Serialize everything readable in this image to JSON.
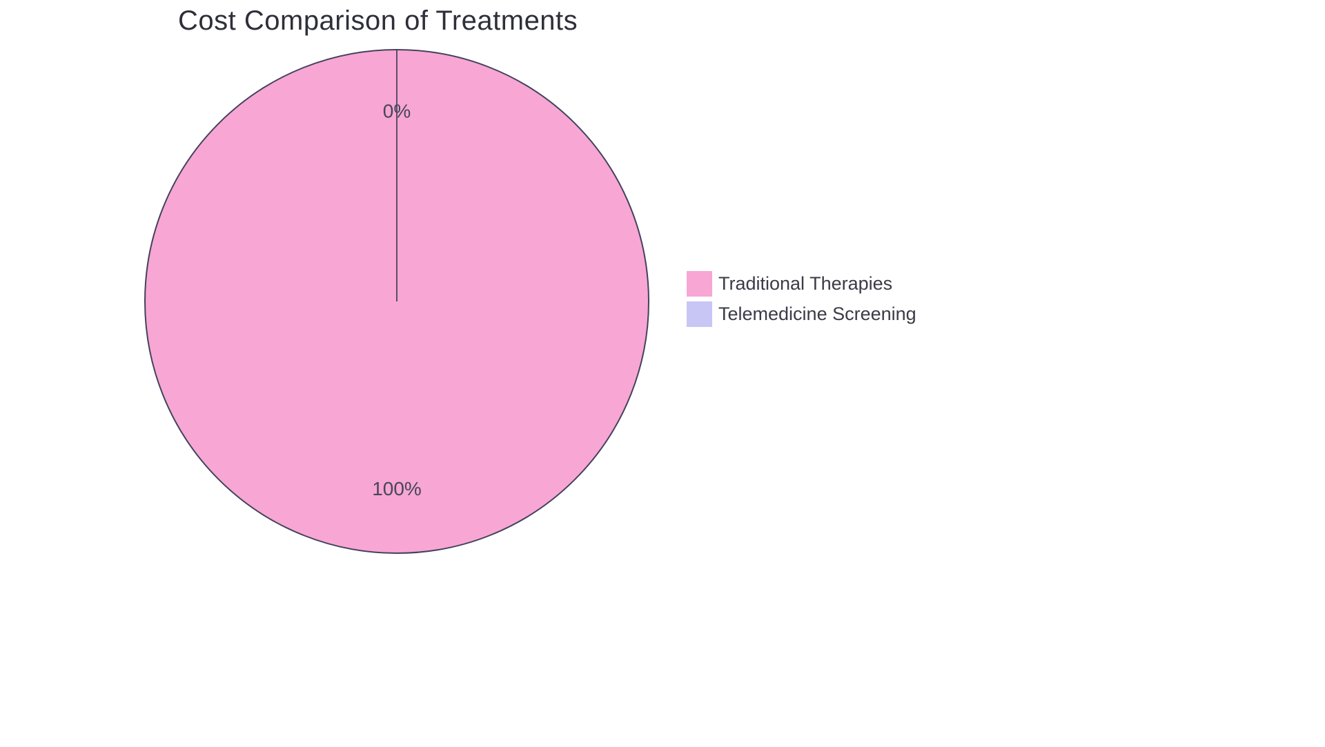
{
  "chart_data": {
    "type": "pie",
    "title": "Cost Comparison of Treatments",
    "series": [
      {
        "name": "Traditional Therapies",
        "value": 100,
        "label": "100%",
        "color": "#f8a6d4"
      },
      {
        "name": "Telemedicine Screening",
        "value": 0,
        "label": "0%",
        "color": "#c8c6f4"
      }
    ],
    "outline_color": "#42425c",
    "label_color": "#46465a",
    "legend_position": "right",
    "background_color": "#ffffff"
  }
}
